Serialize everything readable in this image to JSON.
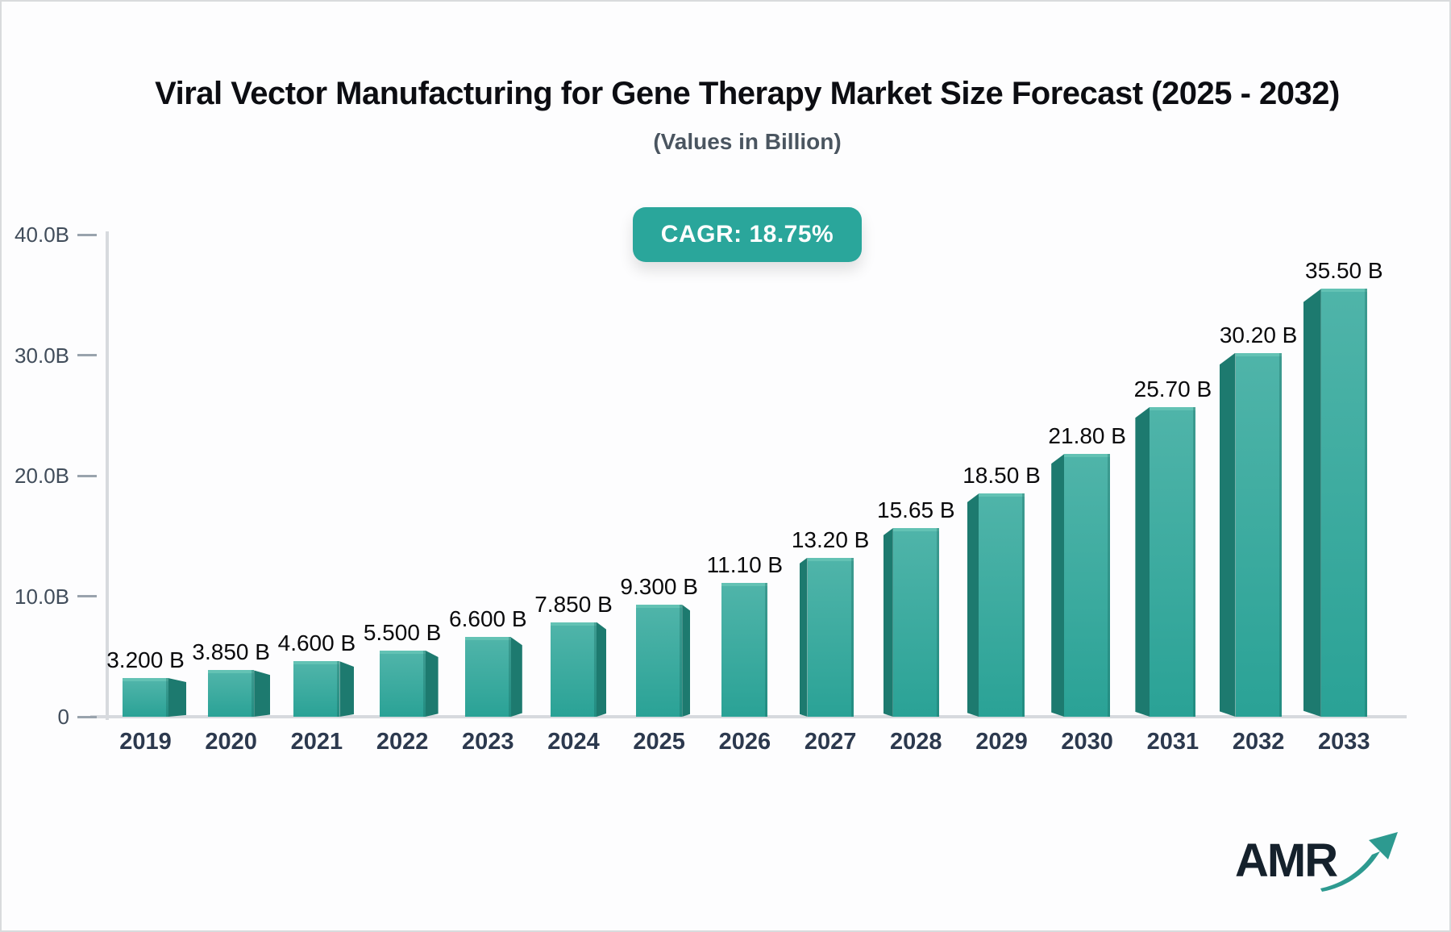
{
  "title": "Viral Vector Manufacturing for Gene Therapy Market Size Forecast (2025 - 2032)",
  "subtitle": "(Values in Billion)",
  "badge": {
    "label": "CAGR: 18.75%",
    "bg_color": "#2aa69b",
    "text_color": "#ffffff"
  },
  "logo": {
    "text": "AMR",
    "icon": "growth-arrow-icon",
    "arrow_color": "#2d9a90",
    "text_color": "#15212c"
  },
  "chart_data": {
    "type": "bar",
    "title": "Viral Vector Manufacturing for Gene Therapy Market Size Forecast (2025 - 2032)",
    "subtitle": "(Values in Billion)",
    "unit": "Billion USD",
    "categories": [
      "2019",
      "2020",
      "2021",
      "2022",
      "2023",
      "2024",
      "2025",
      "2026",
      "2027",
      "2028",
      "2029",
      "2030",
      "2031",
      "2032",
      "2033"
    ],
    "values": [
      3.2,
      3.85,
      4.6,
      5.5,
      6.6,
      7.85,
      9.3,
      11.1,
      13.2,
      15.65,
      18.5,
      21.8,
      25.7,
      30.2,
      35.5
    ],
    "value_labels": [
      "3.200 B",
      "3.850 B",
      "4.600 B",
      "5.500 B",
      "6.600 B",
      "7.850 B",
      "9.300 B",
      "11.10 B",
      "13.20 B",
      "15.65 B",
      "18.50 B",
      "21.80 B",
      "25.70 B",
      "30.20 B",
      "35.50 B"
    ],
    "cagr": "18.75%",
    "ylim": [
      0,
      40
    ],
    "y_ticks": [
      {
        "label": "0",
        "value": 0
      },
      {
        "label": "10.0B",
        "value": 10
      },
      {
        "label": "20.0B",
        "value": 20
      },
      {
        "label": "30.0B",
        "value": 30
      },
      {
        "label": "40.0B",
        "value": 40
      }
    ],
    "grid": false,
    "legend": "none",
    "colors": {
      "bar_front_top": "#4fb4a9",
      "bar_front_bottom": "#2aa296",
      "bar_top_edge": "#63c2b4",
      "bar_side_dark": "#1d7a6f",
      "axis_line": "#d7dade",
      "tick_dash": "#99a3ad",
      "y_label": "#414d5b",
      "x_label": "#2c394e",
      "value_label": "#0a0a0c"
    }
  }
}
